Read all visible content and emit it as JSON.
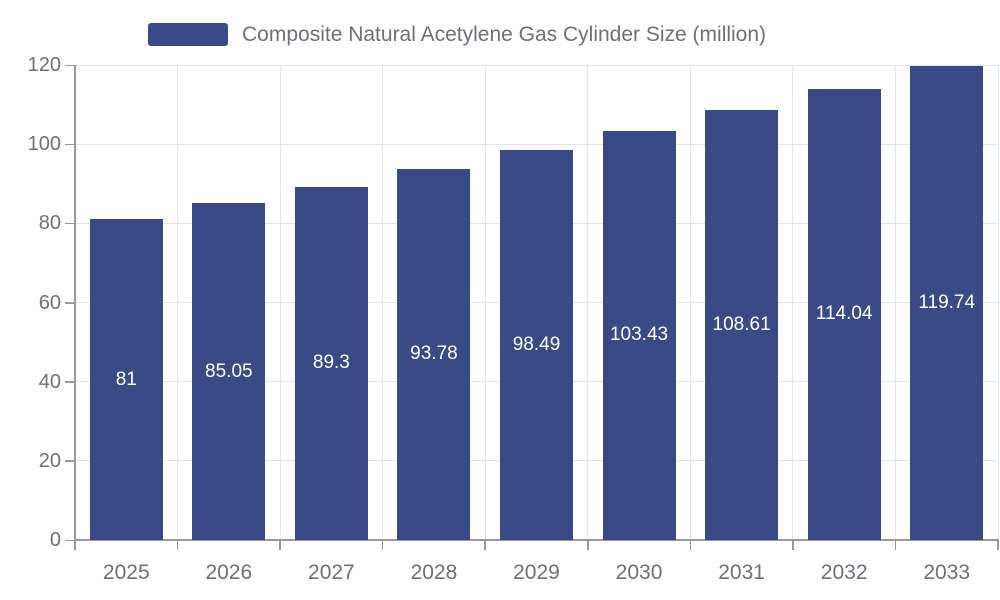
{
  "chart_data": {
    "type": "bar",
    "title": "",
    "legend": "Composite Natural Acetylene Gas Cylinder Size (million)",
    "legend_position": "top",
    "categories": [
      "2025",
      "2026",
      "2027",
      "2028",
      "2029",
      "2030",
      "2031",
      "2032",
      "2033"
    ],
    "values": [
      81,
      85.05,
      89.3,
      93.78,
      98.49,
      103.43,
      108.61,
      114.04,
      119.74
    ],
    "value_labels": [
      "81",
      "85.05",
      "89.3",
      "93.78",
      "98.49",
      "103.43",
      "108.61",
      "114.04",
      "119.74"
    ],
    "xlabel": "",
    "ylabel": "",
    "ylim": [
      0,
      120
    ],
    "yticks": [
      0,
      20,
      40,
      60,
      80,
      100,
      120
    ],
    "ytick_labels": [
      "0",
      "20",
      "40",
      "60",
      "80",
      "100",
      "120"
    ],
    "grid": true,
    "colors": {
      "bar": "#394A87",
      "value_label_text": "#FFFFFF",
      "axis_text": "#6E7079",
      "legend_text": "#6E7079",
      "axis_line": "#999999",
      "gridline": "#E0E6F1",
      "background": "#FFFFFF"
    }
  }
}
